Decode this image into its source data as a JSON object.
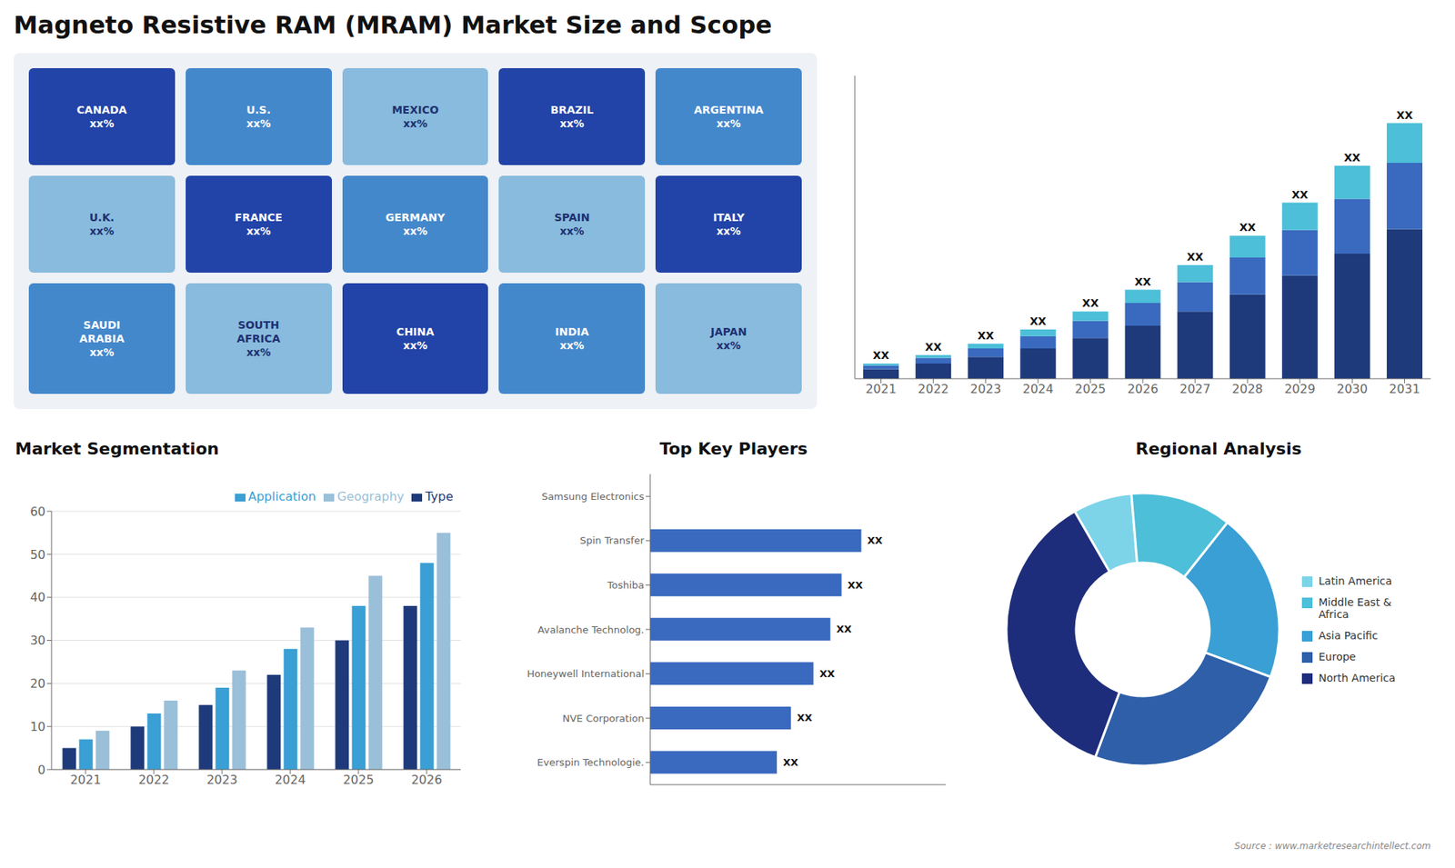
{
  "title": "Magneto Resistive RAM (MRAM) Market Size and Scope",
  "annotations": [
    "Source : www.marketresearchintellect.com"
  ],
  "chart_data": [
    {
      "type": "map",
      "annotations": [
        "CANADA\nxx%",
        "U.S.\nxx%",
        "MEXICO\nxx%",
        "BRAZIL\nxx%",
        "ARGENTINA\nxx%",
        "U.K.\nxx%",
        "FRANCE\nxx%",
        "GERMANY\nxx%",
        "SPAIN\nxx%",
        "ITALY\nxx%",
        "SAUDI\nARABIA\nxx%",
        "SOUTH\nAFRICA\nxx%",
        "CHINA\nxx%",
        "INDIA\nxx%",
        "JAPAN\nxx%"
      ]
    },
    {
      "type": "bar",
      "stacked": true,
      "grid": false,
      "tick_labels": "x",
      "categories": [
        "2021",
        "2022",
        "2023",
        "2024",
        "2025",
        "2026",
        "2027",
        "2028",
        "2029",
        "2030",
        "2031"
      ],
      "series": [
        {
          "color": "#1e3a7b",
          "values": [
            1.0,
            1.6,
            2.3,
            3.2,
            4.3,
            5.6,
            7.1,
            8.9,
            10.9,
            13.2,
            15.8
          ]
        },
        {
          "color": "#3a6abf",
          "values": [
            0.4,
            0.6,
            0.9,
            1.3,
            1.8,
            2.4,
            3.1,
            3.9,
            4.8,
            5.8,
            7.0
          ]
        },
        {
          "color": "#4dbfd8",
          "values": [
            0.2,
            0.3,
            0.5,
            0.7,
            1.0,
            1.4,
            1.8,
            2.3,
            2.9,
            3.5,
            4.2
          ],
          "value_labels": [
            "XX",
            "XX",
            "XX",
            "XX",
            "XX",
            "XX",
            "XX",
            "XX",
            "XX",
            "XX",
            "XX"
          ]
        }
      ],
      "ylim": [
        0,
        32
      ]
    },
    {
      "type": "bar",
      "title": "Market Segmentation",
      "grid": true,
      "legend": "upper right",
      "categories": [
        "2021",
        "2022",
        "2023",
        "2024",
        "2025",
        "2026"
      ],
      "series": [
        {
          "name": "Type",
          "color": "#1e3a7b",
          "values": [
            5,
            10,
            15,
            22,
            30,
            38
          ]
        },
        {
          "name": "Application",
          "color": "#3a9fd4",
          "values": [
            7,
            13,
            19,
            28,
            38,
            48
          ]
        },
        {
          "name": "Geography",
          "color": "#9abfd8",
          "values": [
            9,
            16,
            23,
            33,
            45,
            55
          ]
        }
      ],
      "ylim": [
        0,
        60
      ],
      "yticks": [
        0,
        10,
        20,
        30,
        40,
        50,
        60
      ]
    },
    {
      "type": "bar",
      "orientation": "horizontal",
      "title": "Top Key Players",
      "tick_labels": "y",
      "categories": [
        "Samsung Electronics",
        "Spin Transfer",
        "Toshiba",
        "Avalanche Technolog.",
        "Honeywell International",
        "NVE Corporation",
        "Everspin Technologie."
      ],
      "values": [
        0,
        75,
        68,
        64,
        58,
        50,
        45
      ],
      "value_labels": [
        null,
        "XX",
        "XX",
        "XX",
        "XX",
        "XX",
        "XX"
      ],
      "color": "#3a6abf",
      "xlim": [
        0,
        105
      ]
    },
    {
      "type": "pie",
      "title": "Regional Analysis",
      "legend": "right",
      "categories": [
        "Latin America",
        "Middle East &\nAfrica",
        "Asia Pacific",
        "Europe",
        "North America"
      ],
      "values": [
        7,
        12,
        20,
        25,
        36
      ],
      "colors": [
        "#7dd4e8",
        "#4dbfd8",
        "#3a9fd4",
        "#2e5fa8",
        "#1e2d7b"
      ]
    }
  ]
}
